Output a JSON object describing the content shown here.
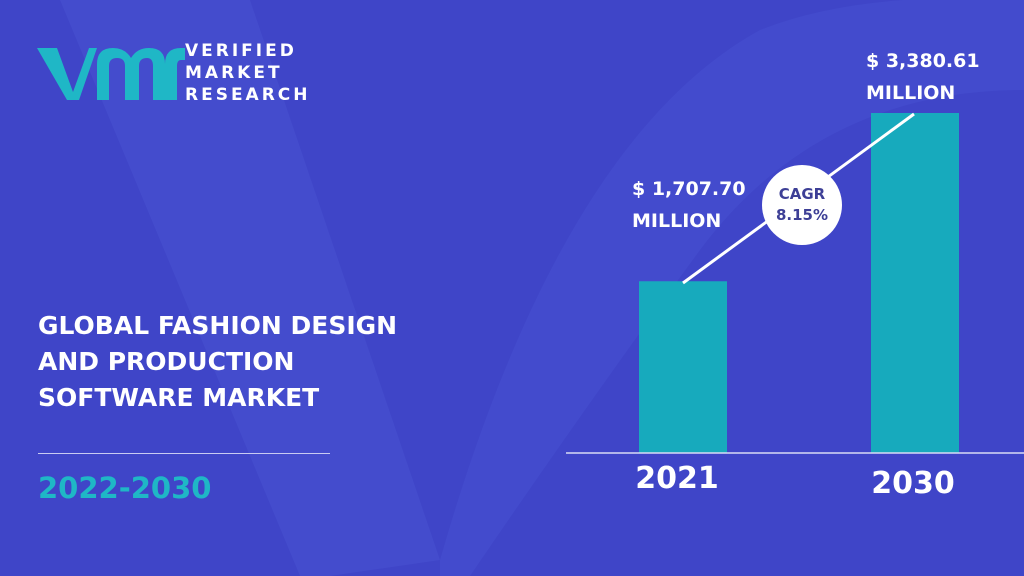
{
  "brand": {
    "line1": "VERIFIED",
    "line2": "MARKET",
    "line3": "RESEARCH",
    "logo_mark": "vmr-logo",
    "accent_color": "#1fb7c6"
  },
  "title_lines": [
    "GLOBAL FASHION DESIGN",
    "AND PRODUCTION",
    "SOFTWARE MARKET"
  ],
  "period": "2022-2030",
  "cagr": {
    "label": "CAGR",
    "value": "8.15%"
  },
  "chart_data": {
    "type": "bar",
    "categories": [
      "2021",
      "2030"
    ],
    "values": [
      1707.7,
      3380.61
    ],
    "value_labels": [
      {
        "amount": "$ 1,707.70",
        "unit": "MILLION"
      },
      {
        "amount": "$ 3,380.61",
        "unit": "MILLION"
      }
    ],
    "bar_color": "#17aabd",
    "title": "",
    "xlabel": "",
    "ylabel": ""
  }
}
